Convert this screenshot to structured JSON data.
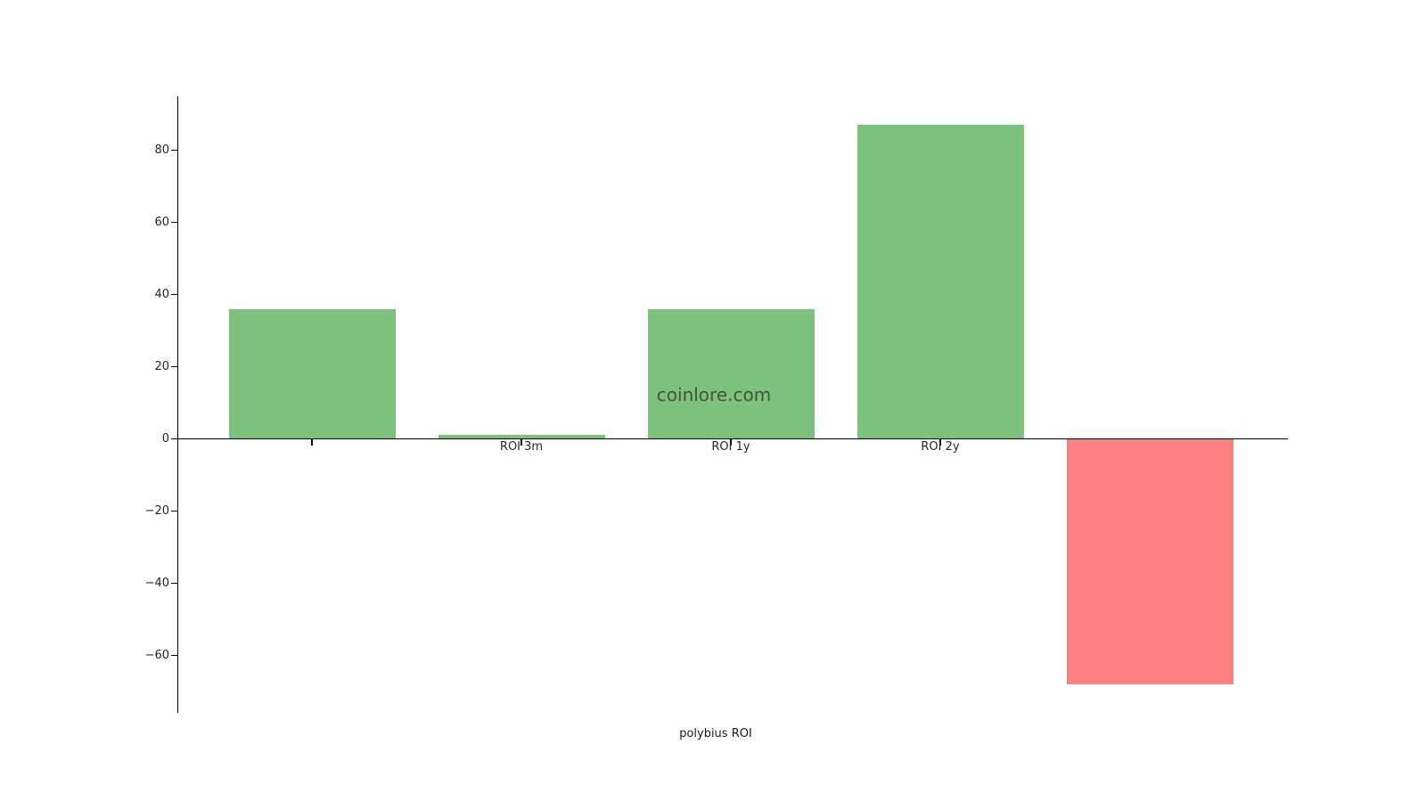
{
  "page": {
    "background": "#ffffff"
  },
  "chart_data": {
    "type": "bar",
    "title": "polybius ROI",
    "watermark": "coinlore.com",
    "categories": [
      "",
      "ROI 3m",
      "ROI 1y",
      "ROI 2y",
      ""
    ],
    "values": [
      36,
      1,
      36,
      87,
      -68
    ],
    "series": [
      {
        "name": "polybius ROI",
        "values": [
          36,
          1,
          36,
          87,
          -68
        ]
      }
    ],
    "yticks": [
      {
        "value": 80,
        "label": "80"
      },
      {
        "value": 60,
        "label": "60"
      },
      {
        "value": 40,
        "label": "40"
      },
      {
        "value": 20,
        "label": "20"
      },
      {
        "value": 0,
        "label": "0"
      },
      {
        "value": -20,
        "label": "−20"
      },
      {
        "value": -40,
        "label": "−40"
      },
      {
        "value": -60,
        "label": "−60"
      }
    ],
    "xlabel": "polybius ROI",
    "ylabel": "",
    "ylim": [
      -76,
      95
    ],
    "grid": "off",
    "legend": "none",
    "colors": {
      "positive": "#7cc27c",
      "negative": "#ff8282",
      "axis": "#000000",
      "text": "#262626"
    }
  }
}
